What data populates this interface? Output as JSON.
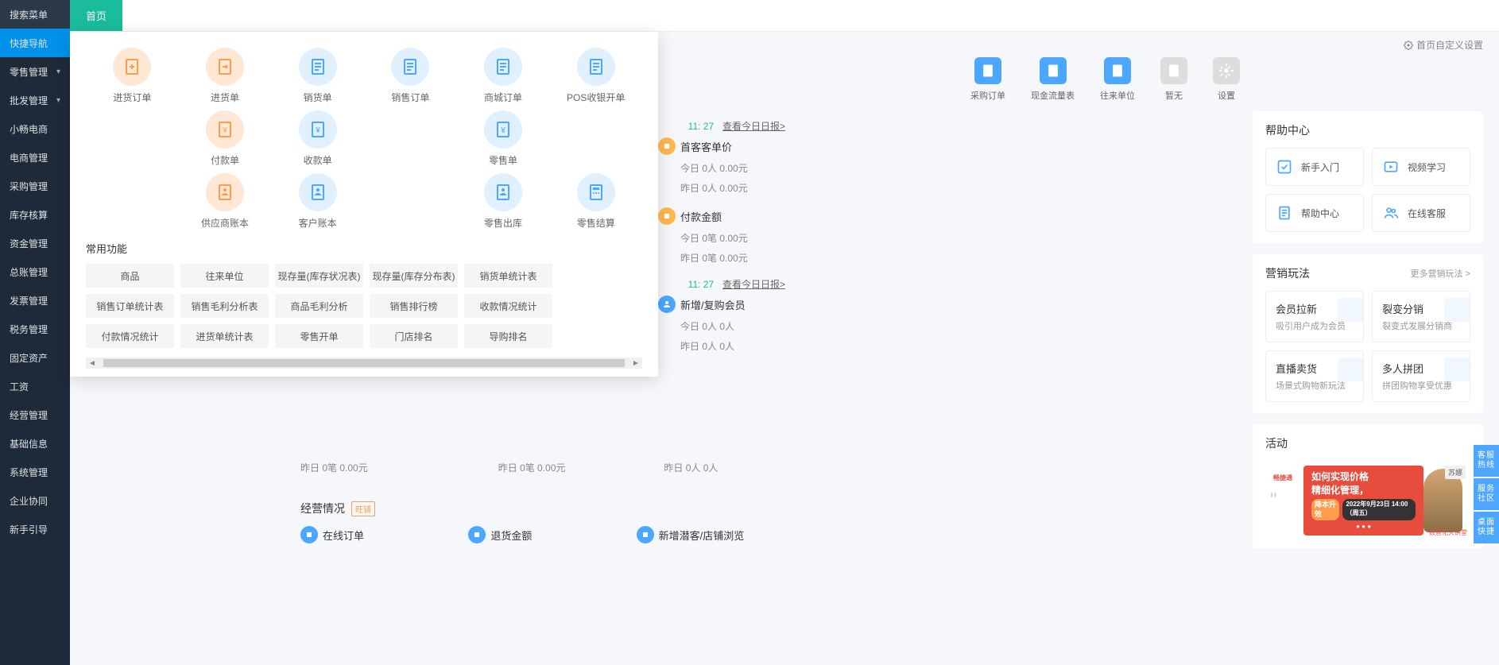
{
  "sidebar": {
    "items": [
      {
        "label": "搜索菜单",
        "class": "search"
      },
      {
        "label": "快捷导航",
        "class": "active"
      },
      {
        "label": "零售管理",
        "arrow": true
      },
      {
        "label": "批发管理",
        "arrow": true
      },
      {
        "label": "小畅电商"
      },
      {
        "label": "电商管理"
      },
      {
        "label": "采购管理"
      },
      {
        "label": "库存核算"
      },
      {
        "label": "资金管理"
      },
      {
        "label": "总账管理"
      },
      {
        "label": "发票管理"
      },
      {
        "label": "税务管理"
      },
      {
        "label": "固定资产"
      },
      {
        "label": "工资"
      },
      {
        "label": "经营管理"
      },
      {
        "label": "基础信息"
      },
      {
        "label": "系统管理"
      },
      {
        "label": "企业协同"
      },
      {
        "label": "新手引导"
      }
    ]
  },
  "tab": {
    "home": "首页"
  },
  "custom_link": "首页自定义设置",
  "quicknav": {
    "rows": [
      [
        {
          "label": "进货订单",
          "color": "orange",
          "icon": "doc-in"
        },
        {
          "label": "进货单",
          "color": "orange",
          "icon": "doc-out"
        },
        {
          "label": "销货单",
          "color": "blue",
          "icon": "list"
        },
        {
          "label": "销售订单",
          "color": "blue",
          "icon": "list"
        },
        {
          "label": "商城订单",
          "color": "blue",
          "icon": "list"
        },
        {
          "label": "POS收银开单",
          "color": "blue",
          "icon": "list"
        }
      ],
      [
        null,
        {
          "label": "付款单",
          "color": "orange",
          "icon": "money"
        },
        {
          "label": "收款单",
          "color": "blue",
          "icon": "money"
        },
        null,
        {
          "label": "零售单",
          "color": "blue",
          "icon": "money"
        },
        null
      ],
      [
        null,
        {
          "label": "供应商账本",
          "color": "orange",
          "icon": "book"
        },
        {
          "label": "客户账本",
          "color": "blue",
          "icon": "book"
        },
        null,
        {
          "label": "零售出库",
          "color": "blue",
          "icon": "book"
        },
        {
          "label": "零售结算",
          "color": "blue",
          "icon": "calc"
        }
      ]
    ],
    "common_title": "常用功能",
    "common": [
      "商品",
      "往来单位",
      "现存量(库存状况表)",
      "现存量(库存分布表)",
      "销货单统计表",
      "销售订单统计表",
      "销售毛利分析表",
      "商品毛利分析",
      "销售排行榜",
      "收款情况统计",
      "付款情况统计",
      "进货单统计表",
      "零售开单",
      "门店排名",
      "导购排名"
    ]
  },
  "shortcuts": [
    {
      "label": "采购订单",
      "color": "blue",
      "icon": "doc"
    },
    {
      "label": "现金流量表",
      "color": "blue",
      "icon": "doc"
    },
    {
      "label": "往来单位",
      "color": "blue",
      "icon": "doc"
    },
    {
      "label": "暂无",
      "color": "gray",
      "icon": "doc"
    },
    {
      "label": "设置",
      "color": "gray",
      "icon": "gear"
    }
  ],
  "stats": {
    "time1": "11: 27",
    "report_link": "查看今日日报>",
    "s1": {
      "title": "首客客单价",
      "l1": "今日  0人  0.00元",
      "l2": "昨日  0人  0.00元"
    },
    "s2": {
      "title": "付款金额",
      "l1": "今日  0笔  0.00元",
      "l2": "昨日  0笔  0.00元"
    },
    "s3": {
      "title": "新增/复购会员",
      "l1": "今日  0人  0人",
      "l2": "昨日  0人  0人"
    },
    "s4": {
      "l1": "昨日  0笔  0.00元"
    },
    "s5": {
      "l1": "昨日  0笔  0.00元"
    },
    "s6": {
      "l1": "昨日  0人  0人"
    }
  },
  "biz_section": {
    "title": "经营情况",
    "badge": "旺铺"
  },
  "biz_items": [
    {
      "title": "在线订单"
    },
    {
      "title": "退货金额"
    },
    {
      "title": "新增潜客/店铺浏览"
    }
  ],
  "help": {
    "title": "帮助中心",
    "items": [
      {
        "label": "新手入门",
        "icon": "check"
      },
      {
        "label": "视频学习",
        "icon": "play"
      },
      {
        "label": "帮助中心",
        "icon": "doc"
      },
      {
        "label": "在线客服",
        "icon": "people"
      }
    ]
  },
  "marketing": {
    "title": "营销玩法",
    "more": "更多营销玩法 >",
    "items": [
      {
        "title": "会员拉新",
        "desc": "吸引用户成为会员"
      },
      {
        "title": "裂变分销",
        "desc": "裂变式发展分销商"
      },
      {
        "title": "直播卖货",
        "desc": "场景式购物新玩法"
      },
      {
        "title": "多人拼团",
        "desc": "拼团购物享受优惠"
      }
    ]
  },
  "activity": {
    "title": "活动",
    "banner_line1": "如何实现价格",
    "banner_line2": "精细化管理，",
    "banner_sub": "降本升效",
    "banner_date": "2022年9月23日 14:00（周五）",
    "banner_tag": "苏娜",
    "banner_corner": "数智化大讲堂"
  },
  "float_tabs": [
    "客服热线",
    "服务社区",
    "桌面快捷"
  ]
}
